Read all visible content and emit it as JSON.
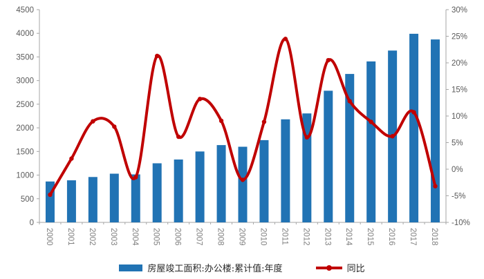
{
  "chart_data": {
    "type": "bar",
    "subtype": "bar-line-combo",
    "title": "",
    "categories": [
      "2000",
      "2001",
      "2002",
      "2003",
      "2004",
      "2005",
      "2006",
      "2007",
      "2008",
      "2009",
      "2010",
      "2011",
      "2012",
      "2013",
      "2014",
      "2015",
      "2016",
      "2017",
      "2018"
    ],
    "series": [
      {
        "name": "房屋竣工面积:办公楼:累计值:年度",
        "type": "bar",
        "axis": "left",
        "values": [
          865,
          890,
          960,
          1030,
          1015,
          1250,
          1330,
          1500,
          1635,
          1600,
          1740,
          2180,
          2305,
          2785,
          3140,
          3405,
          3635,
          3990,
          3870
        ]
      },
      {
        "name": "同比",
        "type": "line",
        "axis": "right",
        "values": [
          -4.8,
          2.0,
          9.0,
          8.0,
          -1.5,
          21.3,
          6.1,
          13.2,
          9.1,
          -2.0,
          8.9,
          24.5,
          6.0,
          20.5,
          12.8,
          8.9,
          6.2,
          10.7,
          -3.2
        ]
      }
    ],
    "left_axis": {
      "min": 0,
      "max": 4500,
      "step": 500,
      "tick_labels": [
        "0",
        "500",
        "1000",
        "1500",
        "2000",
        "2500",
        "3000",
        "3500",
        "4000",
        "4500"
      ]
    },
    "right_axis": {
      "min": -10,
      "max": 30,
      "step": 5,
      "suffix": "%",
      "tick_labels": [
        "-10%",
        "-5%",
        "0%",
        "5%",
        "10%",
        "15%",
        "20%",
        "25%",
        "30%"
      ]
    },
    "grid": "off",
    "legend_position": "bottom"
  },
  "colors": {
    "bar": "#2173B4",
    "line": "#C00000",
    "axis_line": "#A6A6A6",
    "left_tick_label": "#595959",
    "right_tick_label": "#595959",
    "year_label": "#808080",
    "legend_text": "#262626"
  }
}
